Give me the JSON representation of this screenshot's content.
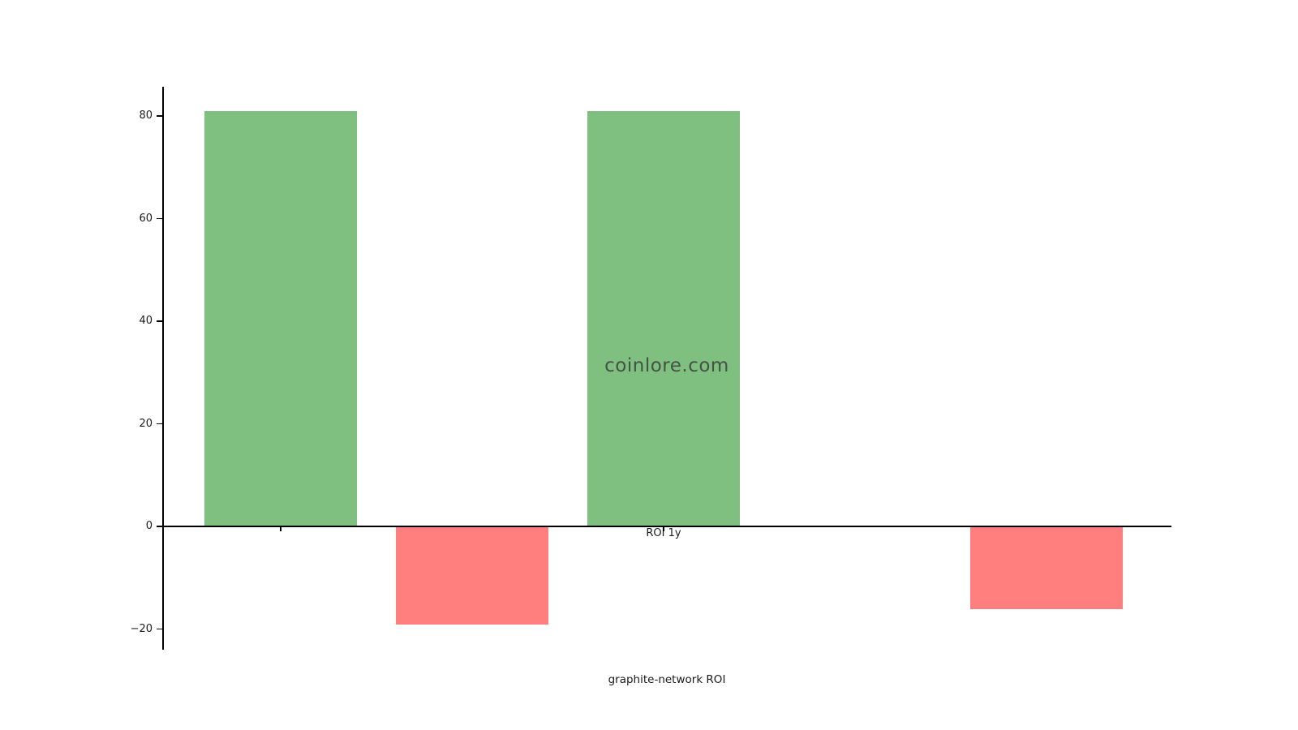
{
  "watermark": "coinlore.com",
  "colors": {
    "positive": "#7fbf7f",
    "negative": "#ff7f7f",
    "axis": "#000000",
    "text": "#1a1a1a",
    "watermark": "#3e4a40"
  },
  "chart_data": {
    "type": "bar",
    "categories": [
      "",
      "",
      "ROI 1y",
      "",
      ""
    ],
    "values": [
      81,
      -19,
      81,
      0,
      -16
    ],
    "title": "graphite-network ROI",
    "xlabel": "",
    "ylabel": "",
    "ylim": [
      -24,
      86
    ],
    "yticks": [
      80,
      60,
      40,
      20,
      0,
      -20
    ],
    "xticks_visible_indices": [
      0,
      2
    ],
    "grid": false,
    "legend": false,
    "watermark": "coinlore.com"
  }
}
